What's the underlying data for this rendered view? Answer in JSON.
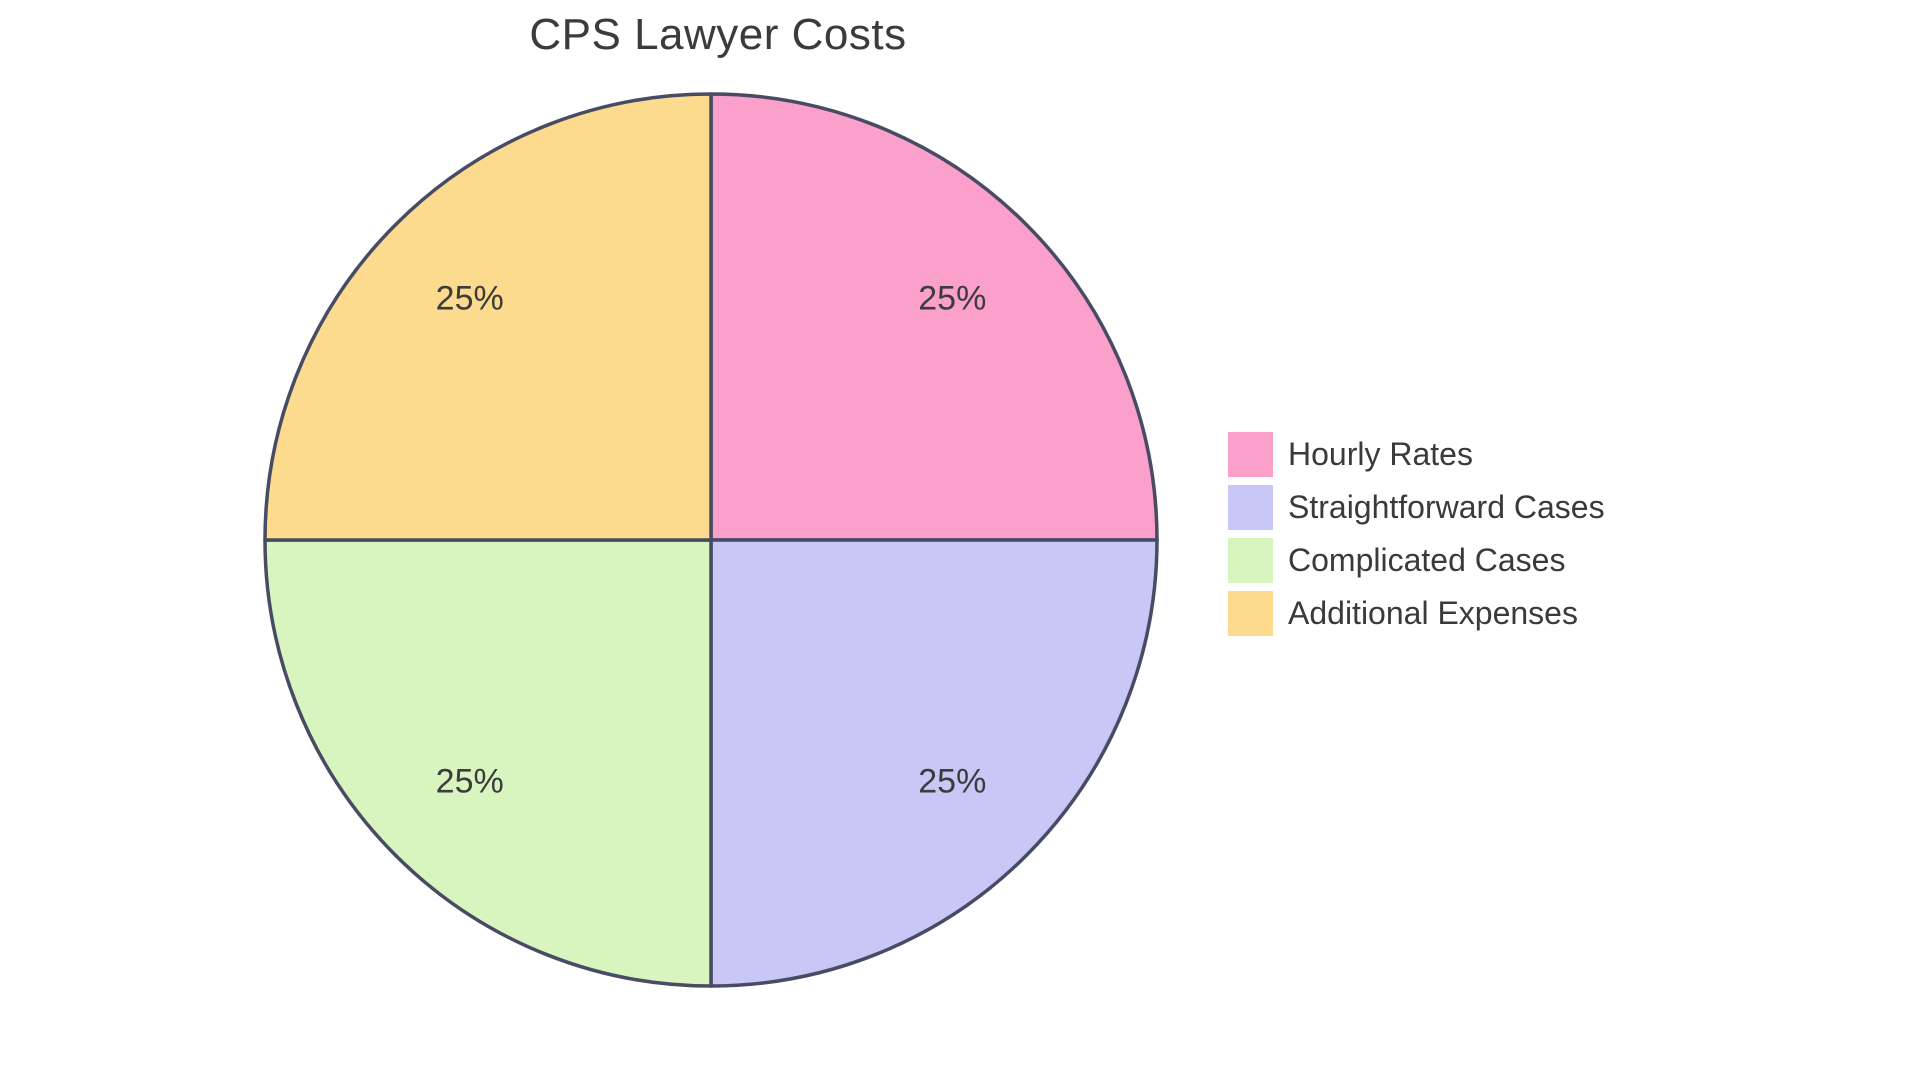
{
  "page": {
    "background": "#FFFFFF"
  },
  "chart_data": {
    "type": "pie",
    "title": "CPS Lawyer Costs",
    "legend_position": "right",
    "direction": "clockwise",
    "start_angle_deg": 0,
    "slices": [
      {
        "label": "Hourly Rates",
        "value": 25,
        "percent_text": "25%",
        "color": "#FB9FCB"
      },
      {
        "label": "Straightforward Cases",
        "value": 25,
        "percent_text": "25%",
        "color": "#C9C7F6"
      },
      {
        "label": "Complicated Cases",
        "value": 25,
        "percent_text": "25%",
        "color": "#D8F5C0"
      },
      {
        "label": "Additional Expenses",
        "value": 25,
        "percent_text": "25%",
        "color": "#FCDA8E"
      }
    ],
    "styles": {
      "slice_border_color": "#484B64",
      "slice_border_width": 3.5,
      "slice_label_color": "#3C3C3C",
      "title_color": "#3B3B3B",
      "legend_text_color": "#3A3A3A"
    }
  }
}
